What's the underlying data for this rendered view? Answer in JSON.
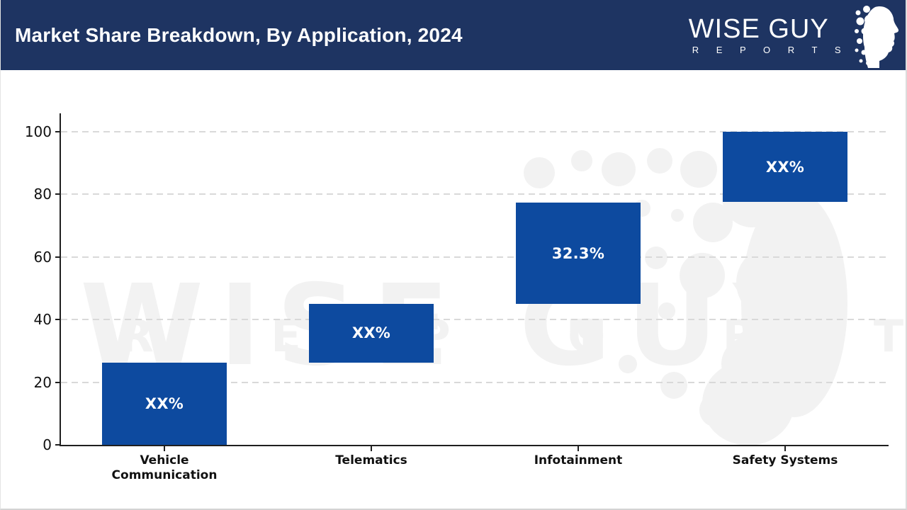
{
  "header": {
    "title": "Market Share Breakdown, By Application, 2024",
    "bg_color": "#1e3462",
    "logo": {
      "line1": "WISE GUY",
      "line2": "R E P O R T S"
    }
  },
  "watermark": {
    "line1": "WISE GUY",
    "line2": "R E P O R T S",
    "color": "#f2f2f2"
  },
  "chart_data": {
    "type": "bar",
    "subtype": "waterfall-floating-bars",
    "title": "Market Share Breakdown, By Application, 2024",
    "categories": [
      "Vehicle Communication",
      "Telematics",
      "Infotainment",
      "Safety Systems"
    ],
    "segments": [
      {
        "category": "Vehicle Communication",
        "start": 0,
        "end": 26.3,
        "label": "XX%"
      },
      {
        "category": "Telematics",
        "start": 26.3,
        "end": 45.0,
        "label": "XX%"
      },
      {
        "category": "Infotainment",
        "start": 45.0,
        "end": 77.3,
        "label": "32.3%"
      },
      {
        "category": "Safety Systems",
        "start": 77.5,
        "end": 100,
        "label": "XX%"
      }
    ],
    "yticks": [
      0,
      20,
      40,
      60,
      80,
      100
    ],
    "ylim": [
      0,
      106
    ],
    "xlabel": "",
    "ylabel": "",
    "legend": false,
    "grid": {
      "axis": "y",
      "style": "dashed",
      "color": "#d9d9d9"
    },
    "bar_color": "#0d4a9f",
    "axis_color": "#1f1f1f"
  }
}
